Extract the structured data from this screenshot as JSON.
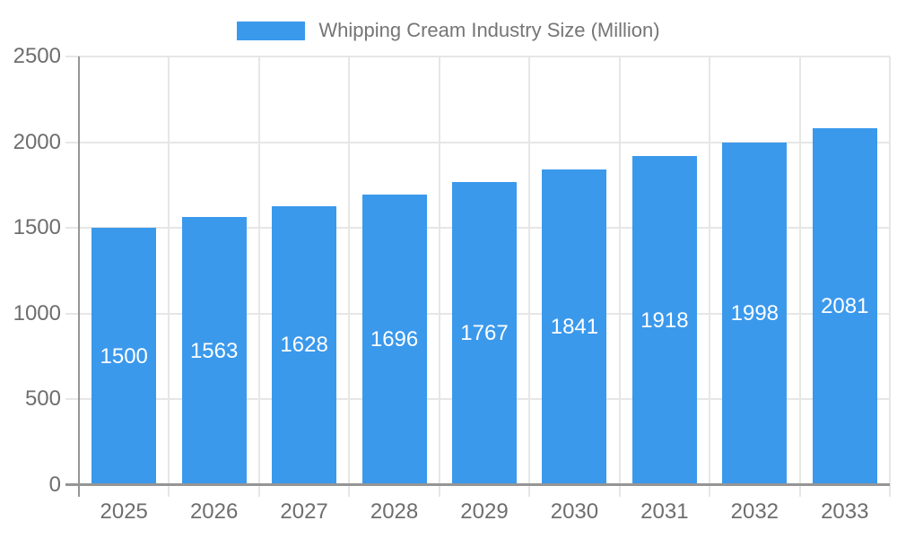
{
  "legend": {
    "label": "Whipping Cream Industry Size (Million)"
  },
  "colors": {
    "bar": "#3b99ec",
    "bar_label": "#ffffff",
    "gridline": "#e6e6e6",
    "axis_line": "#959595",
    "axis_text": "#6e6e6e",
    "legend_text": "#757575"
  },
  "chart_data": {
    "type": "bar",
    "title": "Whipping Cream Industry Size (Million)",
    "categories": [
      "2025",
      "2026",
      "2027",
      "2028",
      "2029",
      "2030",
      "2031",
      "2032",
      "2033"
    ],
    "values": [
      1500,
      1563,
      1628,
      1696,
      1767,
      1841,
      1918,
      1998,
      2081
    ],
    "xlabel": "",
    "ylabel": "",
    "ylim": [
      0,
      2500
    ],
    "yticks": [
      0,
      500,
      1000,
      1500,
      2000,
      2500
    ],
    "grid": true,
    "legend_position": "top-center",
    "value_labels_position": "inside-center",
    "value_labels_color": "#ffffff",
    "bar_color": "#3b99ec"
  }
}
